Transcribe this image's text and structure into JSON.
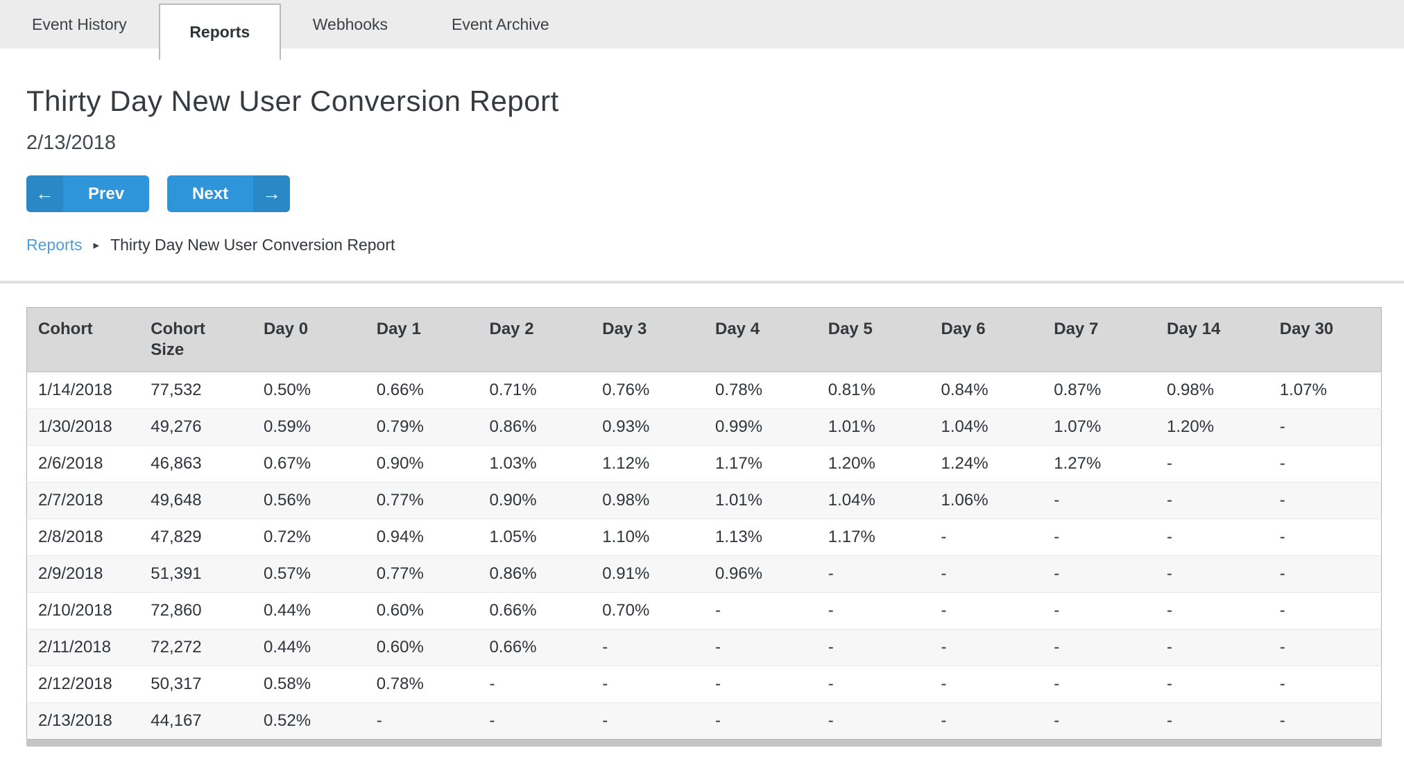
{
  "tabs": {
    "items": [
      {
        "label": "Event History",
        "active": false
      },
      {
        "label": "Reports",
        "active": true
      },
      {
        "label": "Webhooks",
        "active": false
      },
      {
        "label": "Event Archive",
        "active": false
      }
    ]
  },
  "header": {
    "title": "Thirty Day New User Conversion Report",
    "date": "2/13/2018"
  },
  "pagination": {
    "prev_label": "Prev",
    "next_label": "Next",
    "prev_arrow": "←",
    "next_arrow": "→"
  },
  "breadcrumb": {
    "parent": "Reports",
    "separator": "▸",
    "current": "Thirty Day New User Conversion Report"
  },
  "colors": {
    "button_blue": "#2e95da",
    "button_blue_dark": "#2a88c6",
    "link_blue": "#4f9ddb",
    "tabbar_bg": "#ececec",
    "table_header_bg": "#d9d9d9",
    "row_alt_bg": "#f7f7f7"
  },
  "table": {
    "headers": [
      "Cohort",
      "Cohort Size",
      "Day 0",
      "Day 1",
      "Day 2",
      "Day 3",
      "Day 4",
      "Day 5",
      "Day 6",
      "Day 7",
      "Day 14",
      "Day 30"
    ],
    "rows": [
      [
        "1/14/2018",
        "77,532",
        "0.50%",
        "0.66%",
        "0.71%",
        "0.76%",
        "0.78%",
        "0.81%",
        "0.84%",
        "0.87%",
        "0.98%",
        "1.07%"
      ],
      [
        "1/30/2018",
        "49,276",
        "0.59%",
        "0.79%",
        "0.86%",
        "0.93%",
        "0.99%",
        "1.01%",
        "1.04%",
        "1.07%",
        "1.20%",
        "-"
      ],
      [
        "2/6/2018",
        "46,863",
        "0.67%",
        "0.90%",
        "1.03%",
        "1.12%",
        "1.17%",
        "1.20%",
        "1.24%",
        "1.27%",
        "-",
        "-"
      ],
      [
        "2/7/2018",
        "49,648",
        "0.56%",
        "0.77%",
        "0.90%",
        "0.98%",
        "1.01%",
        "1.04%",
        "1.06%",
        "-",
        "-",
        "-"
      ],
      [
        "2/8/2018",
        "47,829",
        "0.72%",
        "0.94%",
        "1.05%",
        "1.10%",
        "1.13%",
        "1.17%",
        "-",
        "-",
        "-",
        "-"
      ],
      [
        "2/9/2018",
        "51,391",
        "0.57%",
        "0.77%",
        "0.86%",
        "0.91%",
        "0.96%",
        "-",
        "-",
        "-",
        "-",
        "-"
      ],
      [
        "2/10/2018",
        "72,860",
        "0.44%",
        "0.60%",
        "0.66%",
        "0.70%",
        "-",
        "-",
        "-",
        "-",
        "-",
        "-"
      ],
      [
        "2/11/2018",
        "72,272",
        "0.44%",
        "0.60%",
        "0.66%",
        "-",
        "-",
        "-",
        "-",
        "-",
        "-",
        "-"
      ],
      [
        "2/12/2018",
        "50,317",
        "0.58%",
        "0.78%",
        "-",
        "-",
        "-",
        "-",
        "-",
        "-",
        "-",
        "-"
      ],
      [
        "2/13/2018",
        "44,167",
        "0.52%",
        "-",
        "-",
        "-",
        "-",
        "-",
        "-",
        "-",
        "-",
        "-"
      ]
    ]
  }
}
